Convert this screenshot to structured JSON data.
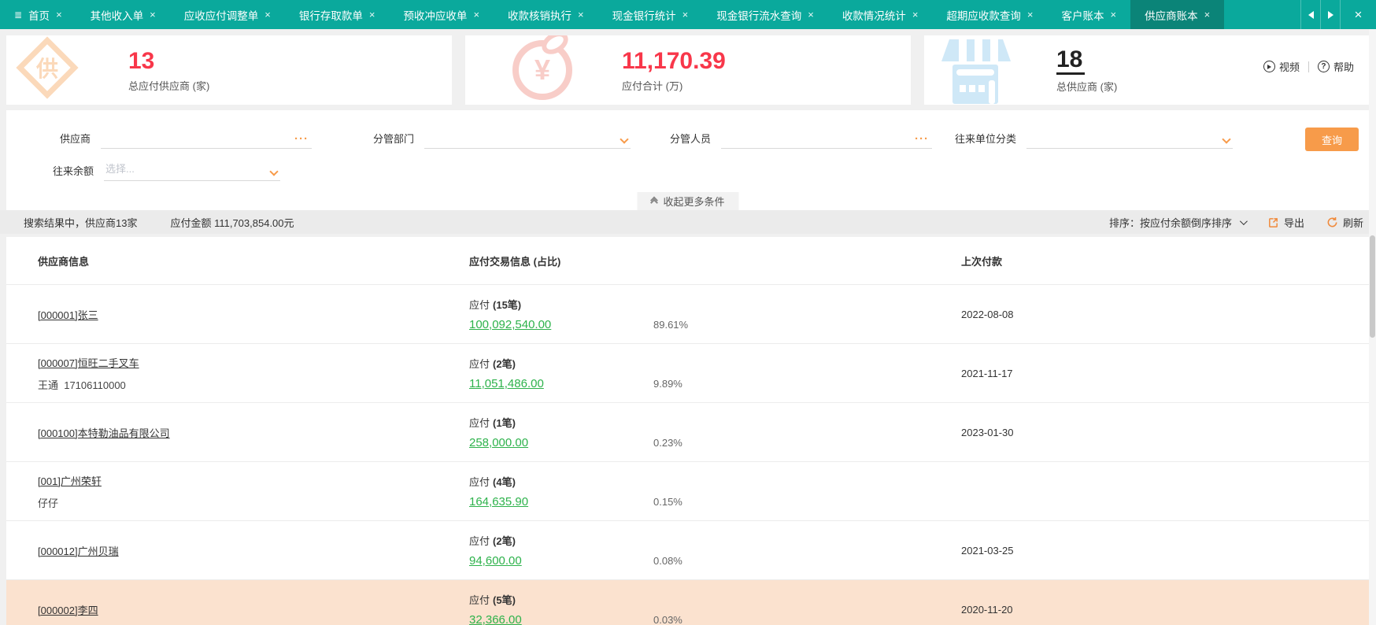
{
  "colors": {
    "topbar_teal": "#0aa99c",
    "active_tab_teal": "#0b8478",
    "stat_red": "#f8374a",
    "accent_orange": "#f79b4a",
    "link_green": "#2db24b",
    "highlight_row": "#fbe2cf"
  },
  "topbar": {
    "tab_close": "×",
    "close_all": "×",
    "tabs": [
      {
        "label": "首页",
        "icon": "form-list-icon",
        "active": false
      },
      {
        "label": "其他收入单",
        "active": false
      },
      {
        "label": "应收应付调整单",
        "active": false
      },
      {
        "label": "银行存取款单",
        "active": false
      },
      {
        "label": "预收冲应收单",
        "active": false
      },
      {
        "label": "收款核销执行",
        "active": false
      },
      {
        "label": "现金银行统计",
        "active": false
      },
      {
        "label": "现金银行流水查询",
        "active": false
      },
      {
        "label": "收款情况统计",
        "active": false
      },
      {
        "label": "超期应收款查询",
        "active": false
      },
      {
        "label": "客户账本",
        "active": false
      },
      {
        "label": "供应商账本",
        "active": true
      }
    ]
  },
  "stats": {
    "cards": [
      {
        "value": "13",
        "label": "总应付供应商 (家)",
        "icon": "supplier-seal-icon"
      },
      {
        "value": "11,170.39",
        "label": "应付合计 (万)",
        "icon": "money-bag-icon"
      },
      {
        "value": "18",
        "label": "总供应商 (家)",
        "icon": "storefront-icon"
      }
    ],
    "video_link": "视频",
    "help_link": "帮助"
  },
  "filters": {
    "fields": [
      {
        "label": "供应商",
        "suffix_icon": "ellipsis-lookup-icon"
      },
      {
        "label": "分管部门",
        "suffix_icon": "chevron-down-icon"
      },
      {
        "label": "分管人员",
        "suffix_icon": "ellipsis-lookup-icon"
      },
      {
        "label": "往来单位分类",
        "suffix_icon": "chevron-down-icon"
      },
      {
        "label": "往来余额",
        "suffix_icon": "chevron-down-icon",
        "placeholder": "选择..."
      }
    ],
    "query_button": "查询",
    "collapse_button": "收起更多条件"
  },
  "summary": {
    "result_text": "搜索结果中，供应商13家",
    "amount_text": "应付金额 111,703,854.00元",
    "sort_text": "排序：按应付余额倒序排序",
    "export_label": "导出",
    "refresh_label": "刷新"
  },
  "table": {
    "headers": [
      "供应商信息",
      "应付交易信息 (占比)",
      "上次付款"
    ],
    "payable_label": "应付",
    "rows": [
      {
        "name": "[000001]张三",
        "contact": "",
        "count": "(15笔)",
        "amount": "100,092,540.00",
        "percent": "89.61%",
        "date": "2022-08-08",
        "highlight": false
      },
      {
        "name": "[000007]恒旺二手叉车",
        "contact": "王通  17106110000",
        "count": "(2笔)",
        "amount": "11,051,486.00",
        "percent": "9.89%",
        "date": "2021-11-17",
        "highlight": false
      },
      {
        "name": "[000100]本特勒油品有限公司",
        "contact": "",
        "count": "(1笔)",
        "amount": "258,000.00",
        "percent": "0.23%",
        "date": "2023-01-30",
        "highlight": false
      },
      {
        "name": "[001]广州荣轩",
        "contact": "仔仔",
        "count": "(4笔)",
        "amount": "164,635.90",
        "percent": "0.15%",
        "date": "",
        "highlight": false
      },
      {
        "name": "[000012]广州贝瑞",
        "contact": "",
        "count": "(2笔)",
        "amount": "94,600.00",
        "percent": "0.08%",
        "date": "2021-03-25",
        "highlight": false
      },
      {
        "name": "[000002]李四",
        "contact": "",
        "count": "(5笔)",
        "amount": "32,366.00",
        "percent": "0.03%",
        "date": "2020-11-20",
        "highlight": true
      }
    ]
  }
}
